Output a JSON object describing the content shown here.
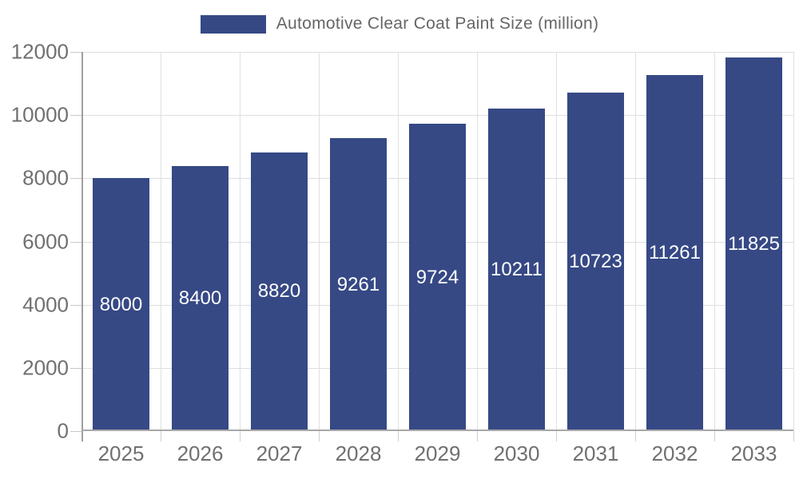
{
  "legend": {
    "label": "Automotive Clear Coat Paint Size (million)"
  },
  "chart_data": {
    "type": "bar",
    "title": "Automotive Clear Coat Paint Size (million)",
    "categories": [
      "2025",
      "2026",
      "2027",
      "2028",
      "2029",
      "2030",
      "2031",
      "2032",
      "2033"
    ],
    "values": [
      8000,
      8400,
      8820,
      9261,
      9724,
      10211,
      10723,
      11261,
      11825
    ],
    "series_name": "Automotive Clear Coat Paint Size (million)",
    "xlabel": "",
    "ylabel": "",
    "ylim": [
      0,
      12000
    ],
    "yticks": [
      0,
      2000,
      4000,
      6000,
      8000,
      10000,
      12000
    ],
    "grid": true,
    "legend_position": "top-center",
    "value_labels": "inside-center",
    "bar_color": "#364985",
    "value_label_color": "#ffffff"
  },
  "colors": {
    "bar": "#364985",
    "grid": "#dedede",
    "axis": "#a8a8a8",
    "tick": "#c9c9c9",
    "axis_label": "#707070",
    "legend_text": "#666666",
    "background": "#ffffff"
  }
}
